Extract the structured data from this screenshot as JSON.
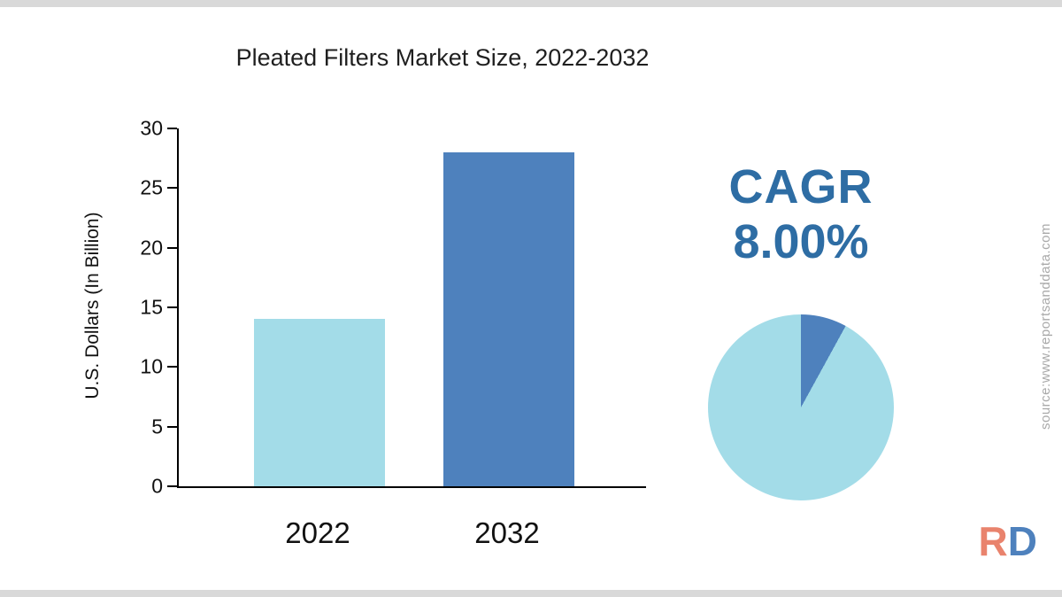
{
  "header": {
    "title": "Pleated Filters Market Size, 2022-2032"
  },
  "cagr": {
    "label": "CAGR",
    "value": "8.00%"
  },
  "source": {
    "text": "source:www.reportsanddata.com"
  },
  "logo": {
    "r": "R",
    "d": "D"
  },
  "chart_data": [
    {
      "type": "bar",
      "title": "Pleated Filters Market Size, 2022-2032",
      "categories": [
        "2022",
        "2032"
      ],
      "values": [
        14,
        28
      ],
      "xlabel": "",
      "ylabel": "U.S. Dollars (In Billion)",
      "ylim": [
        0,
        30
      ],
      "yticks": [
        0,
        5,
        10,
        15,
        20,
        25,
        30
      ],
      "bar_colors": [
        "#a3dce8",
        "#4e81bd"
      ],
      "grid": false,
      "legend": "none"
    },
    {
      "type": "pie",
      "title": "CAGR 8.00%",
      "slices": [
        {
          "name": "CAGR",
          "value": 8,
          "color": "#4e81bd"
        },
        {
          "name": "remainder",
          "value": 92,
          "color": "#a3dce8"
        }
      ],
      "start_angle_deg": 0,
      "legend": "none"
    }
  ]
}
